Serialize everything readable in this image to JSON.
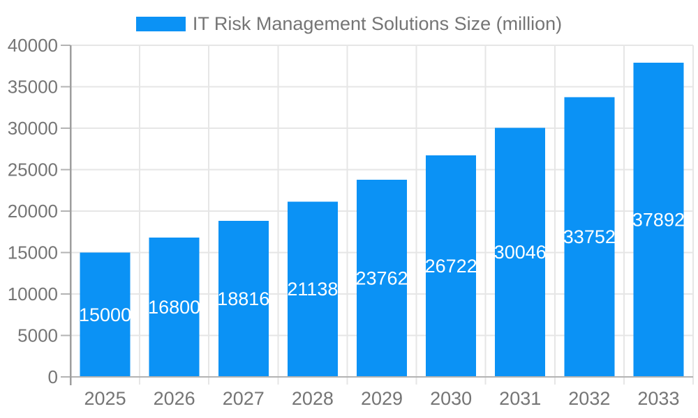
{
  "legend": {
    "label": "IT Risk Management Solutions Size (million)"
  },
  "chart_data": {
    "type": "bar",
    "title": "",
    "xlabel": "",
    "ylabel": "",
    "categories": [
      "2025",
      "2026",
      "2027",
      "2028",
      "2029",
      "2030",
      "2031",
      "2032",
      "2033"
    ],
    "series": [
      {
        "name": "IT Risk Management Solutions Size (million)",
        "values": [
          15000,
          16800,
          18816,
          21138,
          23762,
          26722,
          30046,
          33752,
          37892
        ]
      }
    ],
    "value_labels": [
      "15000",
      "16800",
      "18816",
      "21138",
      "23762",
      "26722",
      "30046",
      "33752",
      "37892"
    ],
    "ylim": [
      0,
      40000
    ],
    "yticks": [
      0,
      5000,
      10000,
      15000,
      20000,
      25000,
      30000,
      35000,
      40000
    ],
    "ytick_labels": [
      "0",
      "5000",
      "10000",
      "15000",
      "20000",
      "25000",
      "30000",
      "35000",
      "40000"
    ],
    "grid": true,
    "legend_position": "top"
  },
  "colors": {
    "bar": "#0b92f5",
    "grid": "#e6e6e6",
    "axis_line": "#9e9e9e",
    "baseline": "#b3b3b3",
    "tick": "#b3b3b3",
    "tick_text": "#757575",
    "legend_text": "#757575",
    "value_label_text": "#ffffff",
    "background": "#ffffff"
  }
}
